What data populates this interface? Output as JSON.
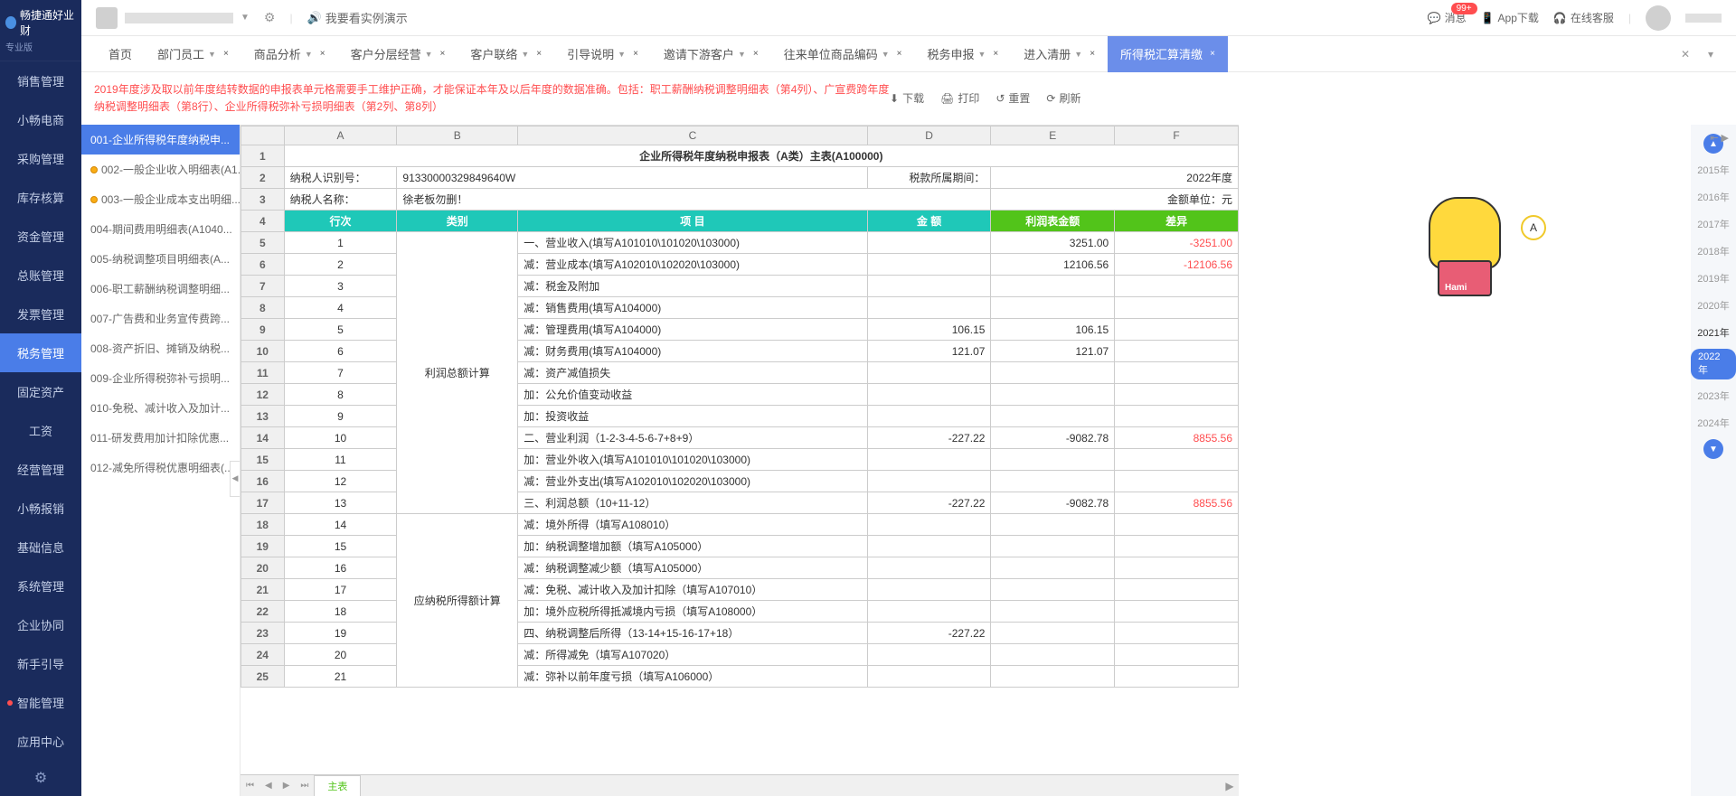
{
  "logo": {
    "brand": "畅捷通好业财",
    "edition": "专业版"
  },
  "sidebar": {
    "items": [
      {
        "label": "销售管理"
      },
      {
        "label": "小畅电商"
      },
      {
        "label": "采购管理"
      },
      {
        "label": "库存核算"
      },
      {
        "label": "资金管理"
      },
      {
        "label": "总账管理"
      },
      {
        "label": "发票管理"
      },
      {
        "label": "税务管理",
        "active": true
      },
      {
        "label": "固定资产"
      },
      {
        "label": "工资"
      },
      {
        "label": "经营管理"
      },
      {
        "label": "小畅报销"
      },
      {
        "label": "基础信息"
      },
      {
        "label": "系统管理"
      },
      {
        "label": "企业协同"
      },
      {
        "label": "新手引导"
      },
      {
        "label": "智能管理",
        "dot": "red"
      },
      {
        "label": "应用中心"
      }
    ]
  },
  "header": {
    "demo_link": "我要看实例演示",
    "msg": "消息",
    "msg_badge": "99+",
    "download": "App下载",
    "service": "在线客服"
  },
  "tabs": {
    "items": [
      {
        "label": "首页"
      },
      {
        "label": "部门员工",
        "dropdown": true,
        "closable": true
      },
      {
        "label": "商品分析",
        "dropdown": true,
        "closable": true
      },
      {
        "label": "客户分层经营",
        "dropdown": true,
        "closable": true
      },
      {
        "label": "客户联络",
        "dropdown": true,
        "closable": true
      },
      {
        "label": "引导说明",
        "dropdown": true,
        "closable": true
      },
      {
        "label": "邀请下游客户",
        "dropdown": true,
        "closable": true
      },
      {
        "label": "往来单位商品编码",
        "dropdown": true,
        "closable": true
      },
      {
        "label": "税务申报",
        "dropdown": true,
        "closable": true
      },
      {
        "label": "进入清册",
        "dropdown": true,
        "closable": true
      },
      {
        "label": "所得税汇算清缴",
        "active": true,
        "closable": true
      }
    ]
  },
  "warning": "2019年度涉及取以前年度结转数据的申报表单元格需要手工维护正确，才能保证本年及以后年度的数据准确。包括：职工薪酬纳税调整明细表（第4列）、广宣费跨年度纳税调整明细表（第8行）、企业所得税弥补亏损明细表（第2列、第8列）",
  "toolbar": {
    "download": "下载",
    "print": "打印",
    "reset": "重置",
    "refresh": "刷新"
  },
  "reports": {
    "items": [
      {
        "label": "001-企业所得税年度纳税申...",
        "active": true
      },
      {
        "label": "002-一般企业收入明细表(A1...",
        "status": "yellow"
      },
      {
        "label": "003-一般企业成本支出明细...",
        "status": "yellow"
      },
      {
        "label": "004-期间费用明细表(A1040..."
      },
      {
        "label": "005-纳税调整项目明细表(A..."
      },
      {
        "label": "006-职工薪酬纳税调整明细..."
      },
      {
        "label": "007-广告费和业务宣传费跨..."
      },
      {
        "label": "008-资产折旧、摊销及纳税..."
      },
      {
        "label": "009-企业所得税弥补亏损明..."
      },
      {
        "label": "010-免税、减计收入及加计..."
      },
      {
        "label": "011-研发费用加计扣除优惠..."
      },
      {
        "label": "012-减免所得税优惠明细表(..."
      }
    ]
  },
  "sheet": {
    "title": "企业所得税年度纳税申报表（A类）主表(A100000)",
    "taxpayer_id_label": "纳税人识别号：",
    "taxpayer_id": "91330000329849640W",
    "period_label": "税款所属期间：",
    "period": "2022年度",
    "taxpayer_name_label": "纳税人名称：",
    "taxpayer_name": "徐老板勿删！",
    "unit_label": "金额单位：元",
    "columns": [
      "A",
      "B",
      "C",
      "D",
      "E",
      "F"
    ],
    "headers": {
      "line": "行次",
      "category": "类别",
      "item": "项    目",
      "amount": "金    额",
      "profit": "利润表金额",
      "diff": "差异"
    },
    "column_widths": {
      "row_header": 32,
      "A": 84,
      "B": 90,
      "C": 260,
      "D": 92,
      "E": 92,
      "F": 92
    },
    "header_colors": {
      "teal": "#1fc8b8",
      "green": "#52c41a"
    },
    "negative_color": "#ff4d4f",
    "rows": [
      {
        "n": 5,
        "line": "1",
        "item": "一、营业收入(填写A101010\\101020\\103000)",
        "d": "",
        "e": "3251.00",
        "f": "-3251.00",
        "fneg": true
      },
      {
        "n": 6,
        "line": "2",
        "item": "减：营业成本(填写A102010\\102020\\103000)",
        "d": "",
        "e": "12106.56",
        "f": "-12106.56",
        "fneg": true
      },
      {
        "n": 7,
        "line": "3",
        "item": "减：税金及附加"
      },
      {
        "n": 8,
        "line": "4",
        "item": "减：销售费用(填写A104000)"
      },
      {
        "n": 9,
        "line": "5",
        "item": "减：管理费用(填写A104000)",
        "d": "106.15",
        "e": "106.15"
      },
      {
        "n": 10,
        "line": "6",
        "item": "减：财务费用(填写A104000)",
        "d": "121.07",
        "e": "121.07"
      },
      {
        "n": 11,
        "line": "7",
        "item": "减：资产减值损失"
      },
      {
        "n": 12,
        "line": "8",
        "item": "加：公允价值变动收益"
      },
      {
        "n": 13,
        "line": "9",
        "item": "加：投资收益"
      },
      {
        "n": 14,
        "line": "10",
        "item": "二、营业利润（1-2-3-4-5-6-7+8+9）",
        "d": "-227.22",
        "e": "-9082.78",
        "f": "8855.56",
        "fpos": true
      },
      {
        "n": 15,
        "line": "11",
        "item": "加：营业外收入(填写A101010\\101020\\103000)"
      },
      {
        "n": 16,
        "line": "12",
        "item": "减：营业外支出(填写A102010\\102020\\103000)"
      },
      {
        "n": 17,
        "line": "13",
        "item": "三、利润总额（10+11-12）",
        "d": "-227.22",
        "e": "-9082.78",
        "f": "8855.56",
        "fpos": true
      },
      {
        "n": 18,
        "line": "14",
        "item": "减：境外所得（填写A108010）"
      },
      {
        "n": 19,
        "line": "15",
        "item": "加：纳税调整增加额（填写A105000）"
      },
      {
        "n": 20,
        "line": "16",
        "item": "减：纳税调整减少额（填写A105000）"
      },
      {
        "n": 21,
        "line": "17",
        "item": "减：免税、减计收入及加计扣除（填写A107010）"
      },
      {
        "n": 22,
        "line": "18",
        "item": "加：境外应税所得抵减境内亏损（填写A108000）"
      },
      {
        "n": 23,
        "line": "19",
        "item": "四、纳税调整后所得（13-14+15-16-17+18）",
        "d": "-227.22"
      },
      {
        "n": 24,
        "line": "20",
        "item": "减：所得减免（填写A107020）"
      },
      {
        "n": 25,
        "line": "21",
        "item": "减：弥补以前年度亏损（填写A106000）"
      }
    ],
    "category1": "利润总额计算",
    "category2": "应纳税所得额计算",
    "sheet_tab": "主表",
    "mascot_label": "Hami",
    "mascot_bubble": "A"
  },
  "years": {
    "items": [
      "2015年",
      "2016年",
      "2017年",
      "2018年",
      "2019年",
      "2020年",
      "2021年",
      "2022年",
      "2023年",
      "2024年"
    ],
    "current": "2021年",
    "active": "2022年"
  }
}
